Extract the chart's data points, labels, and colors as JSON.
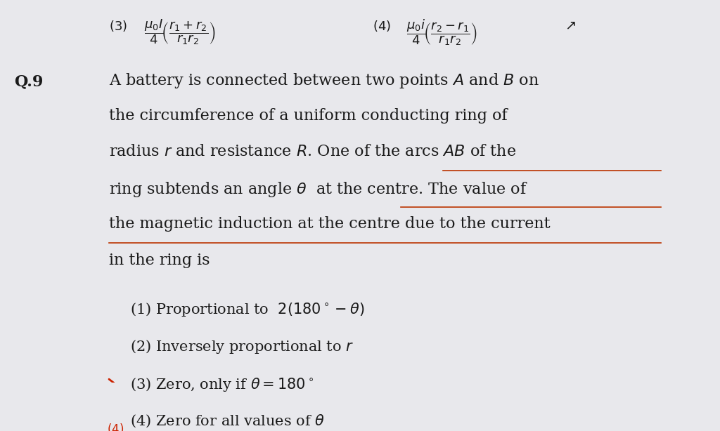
{
  "background_color": "#e8e8ec",
  "text_color": "#1a1a1a",
  "red_color": "#cc2200",
  "q_label": "Q.9",
  "formula3": "$\\dfrac{\\mu_0 I}{4}\\!\\left(\\dfrac{r_1+r_2}{r_1 r_2}\\right)$",
  "formula4": "$\\dfrac{\\mu_0 i}{4}\\!\\left(\\dfrac{r_2-r_1}{r_1 r_2}\\right)$",
  "question_lines": [
    "A battery is connected between two points $A$ and $B$ on",
    "the circumference of a uniform conducting ring of",
    "radius $r$ and resistance $R$. One of the arcs $AB$ of the",
    "ring subtends an angle $\\theta$  at the centre. The value of",
    "the magnetic induction at the centre due to the current",
    "in the ring is"
  ],
  "options": [
    "(1) Proportional to  $2(180^\\circ-\\theta)$",
    "(2) Inversely proportional to $r$",
    "(3) Zero, only if $\\theta = 180^\\circ$",
    "(4) Zero for all values of $\\theta$"
  ],
  "font_size_formula": 13,
  "font_size_q": 16,
  "font_size_text": 16,
  "font_size_options": 15,
  "underline_color": "#bb3300",
  "underline_lw": 1.2
}
